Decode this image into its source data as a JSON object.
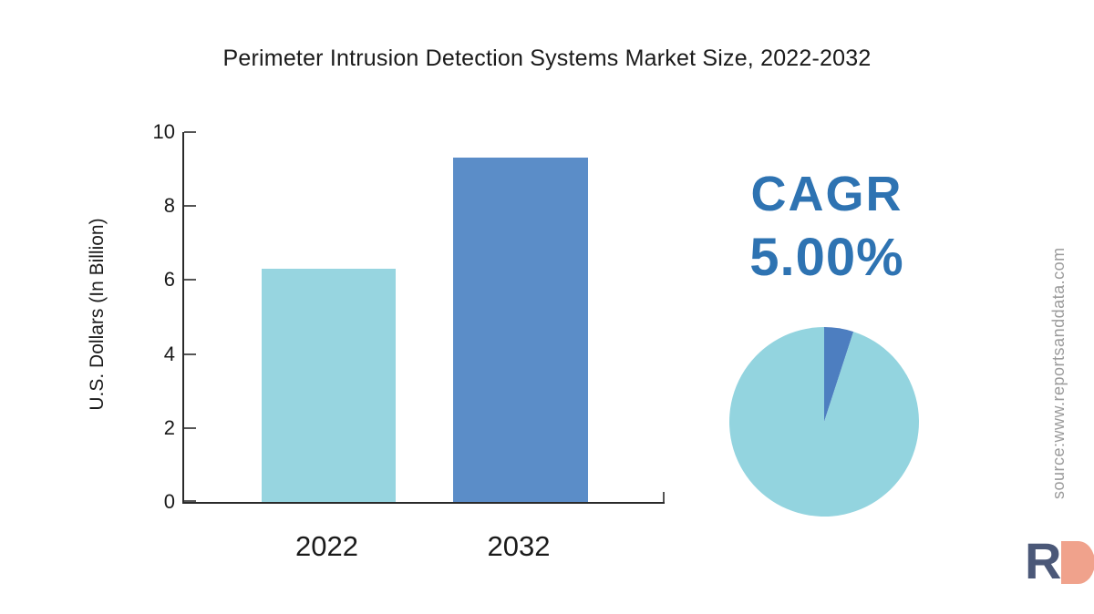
{
  "title": "Perimeter Intrusion Detection Systems Market Size, 2022-2032",
  "watermark": "source:www.reportsanddata.com",
  "cagr": {
    "label": "CAGR",
    "value": "5.00%",
    "color": "#2e73b2"
  },
  "logo": {
    "letter": "R",
    "letter_color": "#4b5878",
    "d_color": "#f0a28c"
  },
  "axis": {
    "spine_color": "#2a2a2a",
    "tick_color": "#555555",
    "text_color": "#1a1a1a"
  },
  "chart_data": [
    {
      "type": "bar",
      "title": "Perimeter Intrusion Detection Systems Market Size, 2022-2032",
      "categories": [
        "2022",
        "2032"
      ],
      "values": [
        6.3,
        9.3
      ],
      "bar_colors": [
        "#97d5e0",
        "#5b8dc8"
      ],
      "xlabel": "",
      "ylabel": "U.S. Dollars (In Billion)",
      "ylim": [
        0,
        10
      ],
      "yticks": [
        0,
        2,
        4,
        6,
        8,
        10
      ],
      "grid": false,
      "legend": false
    },
    {
      "type": "pie",
      "title": "CAGR 5.00%",
      "labels": [
        "CAGR slice",
        "remainder"
      ],
      "values": [
        5,
        95
      ],
      "colors": [
        "#4d7ec0",
        "#93d4df"
      ],
      "start_angle_deg": 0,
      "direction": "clockwise",
      "legend": false
    }
  ]
}
